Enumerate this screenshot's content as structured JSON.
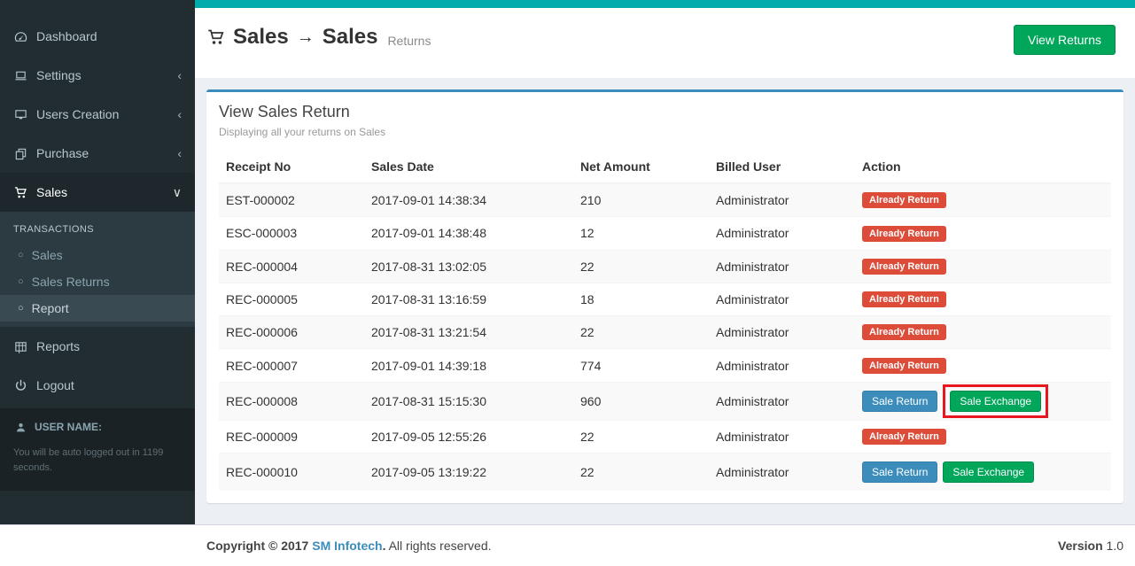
{
  "sidebar": {
    "items": [
      {
        "label": "Dashboard",
        "icon": "gauge-icon",
        "slug": "dashboard"
      },
      {
        "label": "Settings",
        "icon": "laptop-icon",
        "slug": "settings",
        "chevron": "left"
      },
      {
        "label": "Users Creation",
        "icon": "desktop-icon",
        "slug": "users-creation",
        "chevron": "left"
      },
      {
        "label": "Purchase",
        "icon": "copy-icon",
        "slug": "purchase",
        "chevron": "left"
      },
      {
        "label": "Sales",
        "icon": "cart-icon",
        "slug": "sales",
        "chevron": "down",
        "active": true
      }
    ],
    "section_label": "TRANSACTIONS",
    "sub_items": [
      {
        "label": "Sales",
        "slug": "sales"
      },
      {
        "label": "Sales Returns",
        "slug": "sales-returns"
      },
      {
        "label": "Report",
        "slug": "report",
        "highlighted": true
      }
    ],
    "bottom_items": [
      {
        "label": "Reports",
        "icon": "table-icon",
        "slug": "reports"
      },
      {
        "label": "Logout",
        "icon": "power-icon",
        "slug": "logout"
      }
    ],
    "user_section": {
      "label": "USER NAME:",
      "note": "You will be auto logged out in 1199 seconds."
    }
  },
  "header": {
    "title_primary": "Sales",
    "arrow_glyph": "→",
    "title_secondary": "Sales",
    "title_sub": "Returns",
    "view_returns_button": "View Returns"
  },
  "panel": {
    "title": "View Sales Return",
    "subtitle": "Displaying all your returns on Sales"
  },
  "table": {
    "columns": [
      "Receipt No",
      "Sales Date",
      "Net Amount",
      "Billed User",
      "Action"
    ],
    "action_styles": {
      "already": {
        "label": "Already Return",
        "class": "badge-danger",
        "name": "already-return-badge",
        "interactable": false
      },
      "sale_return": {
        "label": "Sale Return",
        "class": "btn-xs btn-primary",
        "name": "sale-return-button",
        "interactable": true
      },
      "sale_exchange": {
        "label": "Sale Exchange",
        "class": "btn-xs btn-success",
        "name": "sale-exchange-button",
        "interactable": true
      }
    },
    "rows": [
      {
        "receipt": "EST-000002",
        "date": "2017-09-01 14:38:34",
        "amount": "210",
        "user": "Administrator",
        "actions": [
          {
            "type": "already"
          }
        ]
      },
      {
        "receipt": "ESC-000003",
        "date": "2017-09-01 14:38:48",
        "amount": "12",
        "user": "Administrator",
        "actions": [
          {
            "type": "already"
          }
        ]
      },
      {
        "receipt": "REC-000004",
        "date": "2017-08-31 13:02:05",
        "amount": "22",
        "user": "Administrator",
        "actions": [
          {
            "type": "already"
          }
        ]
      },
      {
        "receipt": "REC-000005",
        "date": "2017-08-31 13:16:59",
        "amount": "18",
        "user": "Administrator",
        "actions": [
          {
            "type": "already"
          }
        ]
      },
      {
        "receipt": "REC-000006",
        "date": "2017-08-31 13:21:54",
        "amount": "22",
        "user": "Administrator",
        "actions": [
          {
            "type": "already"
          }
        ]
      },
      {
        "receipt": "REC-000007",
        "date": "2017-09-01 14:39:18",
        "amount": "774",
        "user": "Administrator",
        "actions": [
          {
            "type": "already"
          }
        ]
      },
      {
        "receipt": "REC-000008",
        "date": "2017-08-31 15:15:30",
        "amount": "960",
        "user": "Administrator",
        "actions": [
          {
            "type": "sale_return"
          },
          {
            "type": "sale_exchange",
            "highlighted": true
          }
        ]
      },
      {
        "receipt": "REC-000009",
        "date": "2017-09-05 12:55:26",
        "amount": "22",
        "user": "Administrator",
        "actions": [
          {
            "type": "already"
          }
        ]
      },
      {
        "receipt": "REC-000010",
        "date": "2017-09-05 13:19:22",
        "amount": "22",
        "user": "Administrator",
        "actions": [
          {
            "type": "sale_return"
          },
          {
            "type": "sale_exchange"
          }
        ]
      }
    ]
  },
  "footer": {
    "copyright_prefix": "Copyright © 2017 ",
    "company": "SM Infotech",
    "copyright_dot": ".",
    "rights_text": " All rights reserved.",
    "version_label": "Version",
    "version_number": "1.0"
  },
  "colors": {
    "topbar_teal": "#00acac",
    "sidebar_bg": "#222d32",
    "sidebar_active_bg": "#1e282c",
    "submenu_bg": "#2c3b41",
    "box_top_border": "#3c8dbc",
    "danger_red": "#dd4b39",
    "primary_blue": "#3c8dbc",
    "success_green": "#00a65a",
    "annotation_red": "#e8171f",
    "content_bg": "#ecf0f5"
  }
}
